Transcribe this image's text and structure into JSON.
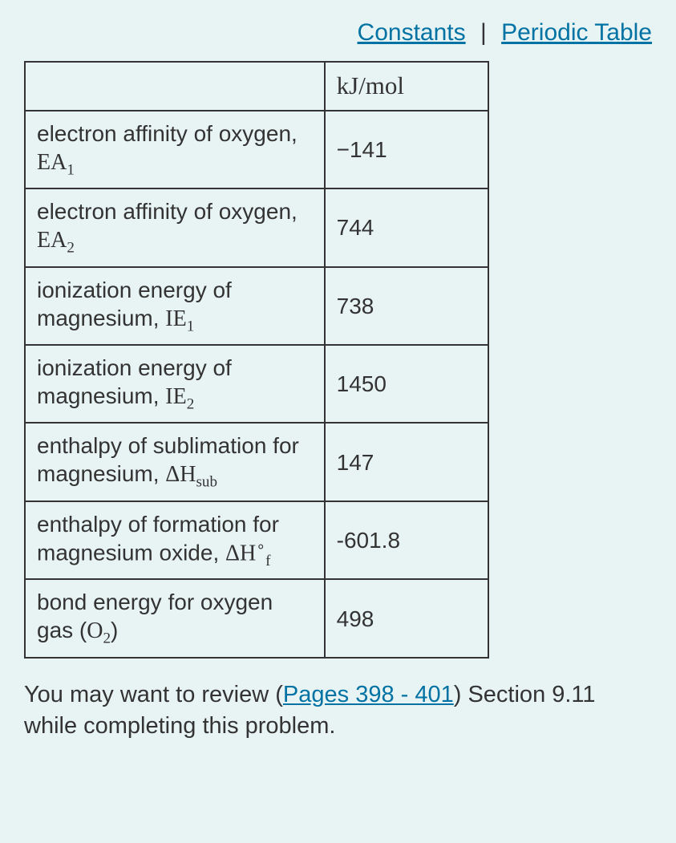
{
  "links": {
    "constants": "Constants",
    "periodic_table": "Periodic Table",
    "separator": "|"
  },
  "table": {
    "header_value": "kJ/mol",
    "rows": [
      {
        "label_text": "electron affinity of oxygen, ",
        "symbol": "EA",
        "subscript": "1",
        "value": "−141"
      },
      {
        "label_text": "electron affinity of oxygen, ",
        "symbol": "EA",
        "subscript": "2",
        "value": "744"
      },
      {
        "label_text": "ionization energy of magnesium, ",
        "symbol": "IE",
        "subscript": "1",
        "value": "738"
      },
      {
        "label_text": "ionization energy of magnesium, ",
        "symbol": "IE",
        "subscript": "2",
        "value": "1450"
      },
      {
        "label_text": "enthalpy of sublimation for magnesium, ",
        "symbol": "ΔH",
        "subscript": "sub",
        "value": "147"
      },
      {
        "label_text": "enthalpy of formation for magnesium oxide, ",
        "symbol": "ΔH",
        "subscript": "f",
        "superscript": "∘",
        "value": "-601.8"
      },
      {
        "label_text": "bond energy for oxygen gas (",
        "symbol": "O",
        "subscript": "2",
        "tail": ")",
        "value": "498"
      }
    ]
  },
  "footer": {
    "pre": "You may want to review (",
    "link": "Pages 398 - 401",
    "post": ") Section 9.11 while completing this problem."
  },
  "colors": {
    "background": "#e8f3f3",
    "border": "#333333",
    "text": "#333333",
    "link": "#0072a3"
  }
}
